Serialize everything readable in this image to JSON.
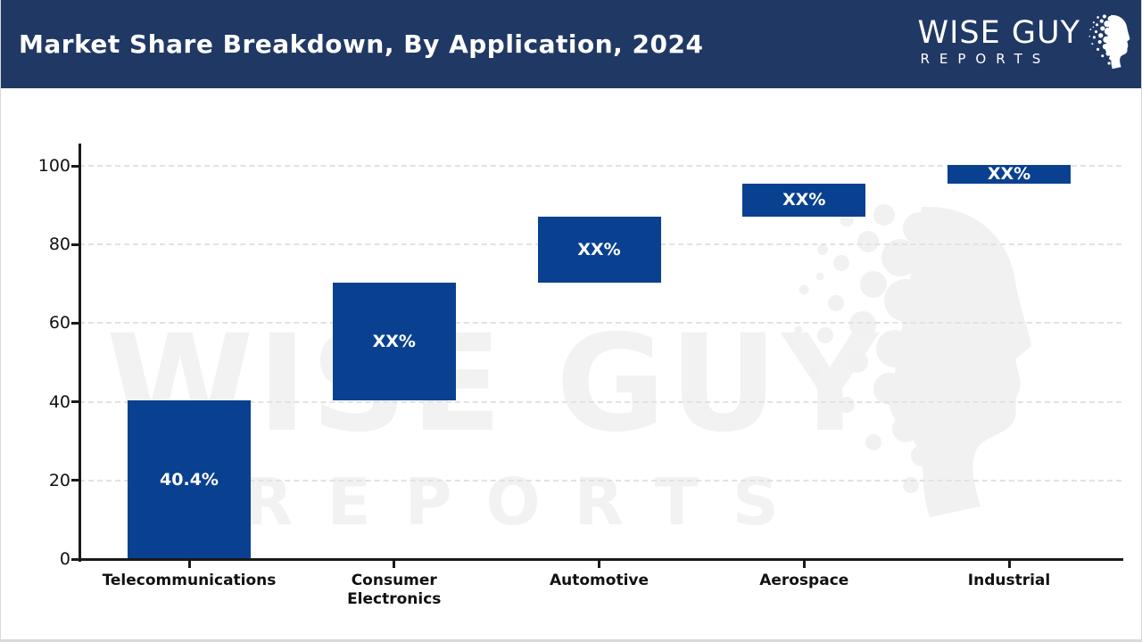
{
  "header": {
    "title": "Market Share Breakdown, By Application, 2024",
    "logo": {
      "wordmark": "WISE GUY",
      "subtext": "REPORTS"
    }
  },
  "watermark": {
    "line1": "WISE GUY",
    "line2": "REPORTS"
  },
  "colors": {
    "header_bg": "#203864",
    "bar": "#0a4090",
    "grid": "#e2e2e2",
    "axis": "#1a1a1a",
    "bar_label": "#ffffff",
    "watermark": "#f2f2f2",
    "frame_border": "#d9d9d9"
  },
  "chart_data": {
    "type": "bar",
    "subtype": "waterfall",
    "title": "Market Share Breakdown, By Application, 2024",
    "categories": [
      "Telecommunications",
      "Consumer Electronics",
      "Automotive",
      "Aerospace",
      "Industrial"
    ],
    "tick_labels": [
      "Telecommunications",
      "Consumer\nElectronics",
      "Automotive",
      "Aerospace",
      "Industrial"
    ],
    "segments": [
      {
        "category": "Telecommunications",
        "start": 0,
        "end": 40.4,
        "label": "40.4%"
      },
      {
        "category": "Consumer Electronics",
        "start": 40.4,
        "end": 70.4,
        "label": "XX%"
      },
      {
        "category": "Automotive",
        "start": 70.4,
        "end": 87.1,
        "label": "XX%"
      },
      {
        "category": "Aerospace",
        "start": 87.1,
        "end": 95.5,
        "label": "XX%"
      },
      {
        "category": "Industrial",
        "start": 95.5,
        "end": 100.2,
        "label": "XX%"
      }
    ],
    "yticks": [
      0,
      20,
      40,
      60,
      80,
      100
    ],
    "ylim": [
      0,
      105
    ],
    "xlabel": "",
    "ylabel": "",
    "grid": "horizontal-dashed",
    "legend_position": "none"
  }
}
